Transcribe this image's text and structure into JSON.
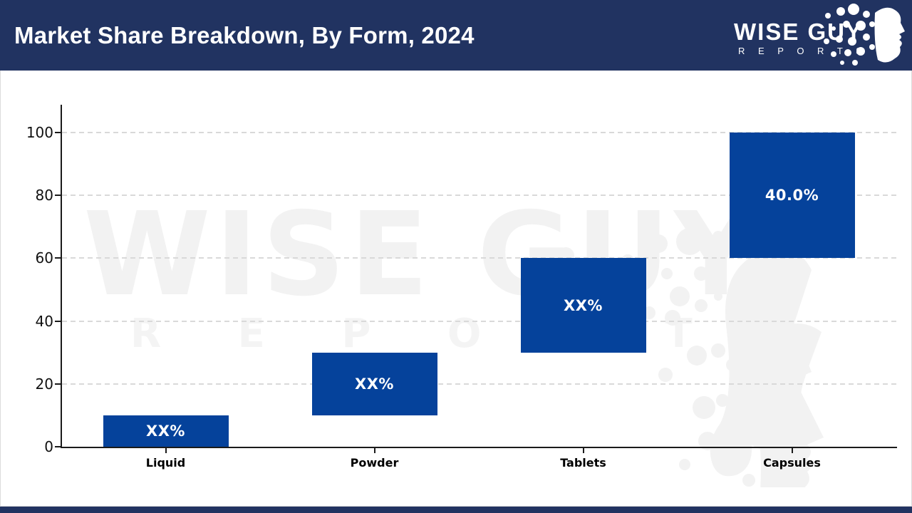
{
  "header": {
    "title": "Market Share Breakdown, By Form, 2024",
    "logo": {
      "line1": "WISE GUY",
      "line2": "R E P O R T S"
    }
  },
  "watermark": {
    "line1": "WISE GUY",
    "line2": "R E P O R T S"
  },
  "chart_data": {
    "type": "bar",
    "subtype": "waterfall",
    "title": "Market Share Breakdown, By Form, 2024",
    "categories": [
      "Liquid",
      "Powder",
      "Tablets",
      "Capsules"
    ],
    "bars": [
      {
        "category": "Liquid",
        "start": 0,
        "end": 10,
        "label": "XX%"
      },
      {
        "category": "Powder",
        "start": 10,
        "end": 30,
        "label": "XX%"
      },
      {
        "category": "Tablets",
        "start": 30,
        "end": 60,
        "label": "XX%"
      },
      {
        "category": "Capsules",
        "start": 60,
        "end": 100,
        "label": "40.0%"
      }
    ],
    "ylim": [
      0,
      100
    ],
    "yticks": [
      0,
      20,
      40,
      60,
      80,
      100
    ],
    "xlabel": "",
    "ylabel": "",
    "grid": "horizontal-dashed",
    "legend": "none",
    "colors": {
      "bar": "#05429b",
      "bar_label": "#ffffff",
      "grid": "#d9d9d9",
      "axis": "#1a1a1a",
      "header_bg": "#213361",
      "footer_bg": "#213361",
      "watermark": "#f2f2f2"
    }
  }
}
